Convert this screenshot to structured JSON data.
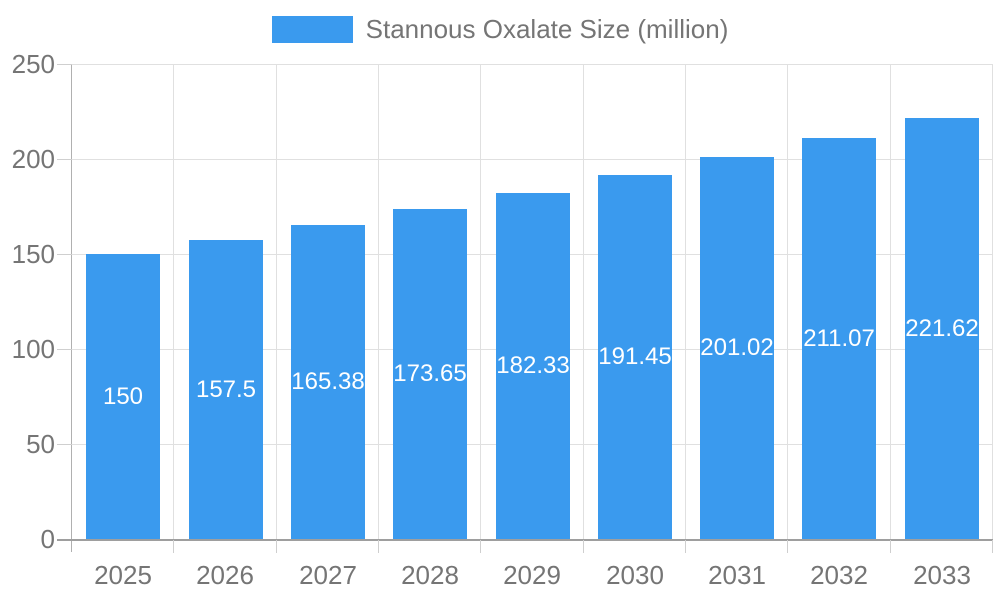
{
  "legend": {
    "label": "Stannous Oxalate Size (million)"
  },
  "chart_data": {
    "type": "bar",
    "title": "Stannous Oxalate Size (million)",
    "categories": [
      "2025",
      "2026",
      "2027",
      "2028",
      "2029",
      "2030",
      "2031",
      "2032",
      "2033"
    ],
    "values": [
      150,
      157.5,
      165.38,
      173.65,
      182.33,
      191.45,
      201.02,
      211.07,
      221.62
    ],
    "value_labels": [
      "150",
      "157.5",
      "165.38",
      "173.65",
      "182.33",
      "191.45",
      "201.02",
      "211.07",
      "221.62"
    ],
    "series": [
      {
        "name": "Stannous Oxalate Size (million)",
        "values": [
          150,
          157.5,
          165.38,
          173.65,
          182.33,
          191.45,
          201.02,
          211.07,
          221.62
        ]
      }
    ],
    "xlabel": "",
    "ylabel": "",
    "y_ticks": [
      0,
      50,
      100,
      150,
      200,
      250
    ],
    "ylim": [
      0,
      250
    ],
    "grid": true,
    "legend_position": "top",
    "bar_label_position": "center-inside",
    "colors": {
      "bar": "#3A9AEE",
      "bar_label": "#FFFFFF",
      "axis_text": "#757575",
      "grid_line": "#E0E0E0",
      "axis_line": "#9E9E9E"
    }
  }
}
